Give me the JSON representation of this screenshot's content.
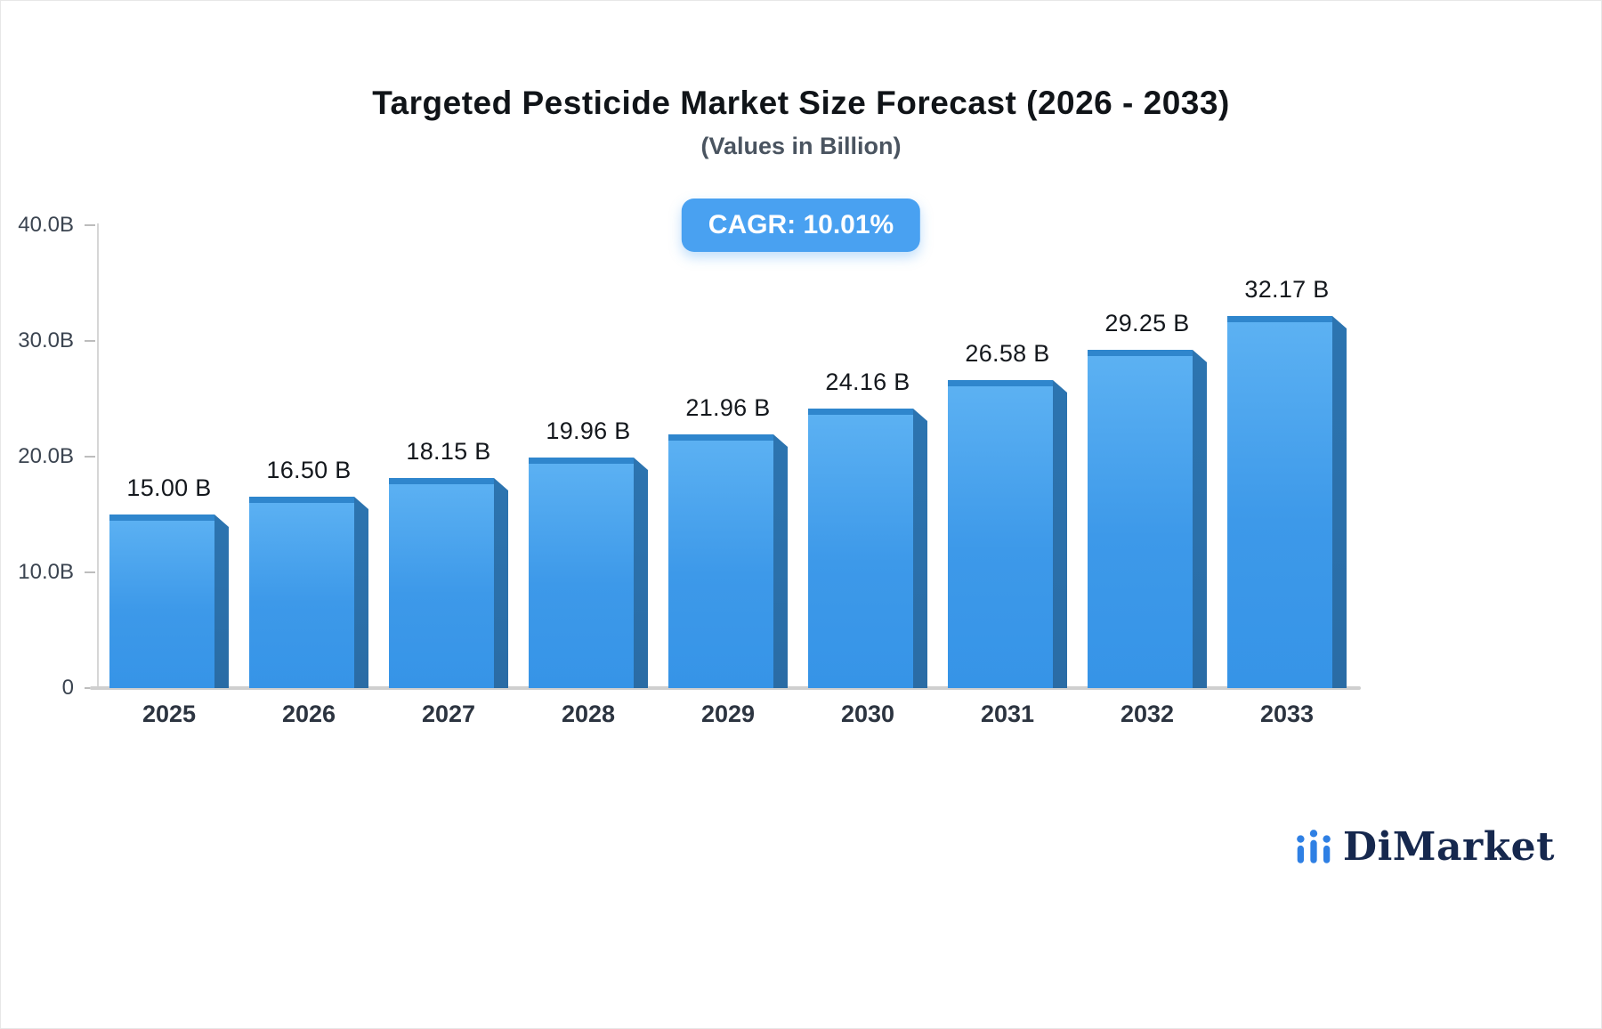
{
  "header": {
    "title": "Targeted Pesticide Market Size Forecast (2026 - 2033)",
    "subtitle": "(Values in Billion)",
    "badge_label": "CAGR: 10.01%"
  },
  "logo": {
    "text": "DiMarket",
    "icon": "bar-chart-logo-icon",
    "icon_color": "#2f80e4",
    "text_color": "#16284e"
  },
  "colors": {
    "badge_bg": "#49a1f1",
    "bar_face_top": "#5db2f3",
    "bar_face_bottom": "#3694e7",
    "bar_side": "#2b6fa9",
    "bar_top_bevel": "#2f86cd",
    "axis_line": "#d6d6d6",
    "baseline": "#cfcfcf"
  },
  "chart_data": {
    "type": "bar",
    "title": "Targeted Pesticide Market Size Forecast (2026 - 2033)",
    "subtitle": "(Values in Billion)",
    "annotation": "CAGR: 10.01%",
    "categories": [
      "2025",
      "2026",
      "2027",
      "2028",
      "2029",
      "2030",
      "2031",
      "2032",
      "2033"
    ],
    "values": [
      15.0,
      16.5,
      18.15,
      19.96,
      21.96,
      24.16,
      26.58,
      29.25,
      32.17
    ],
    "value_labels": [
      "15.00 B",
      "16.50 B",
      "18.15 B",
      "19.96 B",
      "21.96 B",
      "24.16 B",
      "26.58 B",
      "29.25 B",
      "32.17 B"
    ],
    "xlabel": "",
    "ylabel": "",
    "ylim": [
      0,
      40
    ],
    "yticks": [
      {
        "value": 0,
        "label": "0"
      },
      {
        "value": 10,
        "label": "10.0B"
      },
      {
        "value": 20,
        "label": "20.0B"
      },
      {
        "value": 30,
        "label": "30.0B"
      },
      {
        "value": 40,
        "label": "40.0B"
      }
    ],
    "grid": false,
    "legend": false,
    "units": "Billion"
  }
}
